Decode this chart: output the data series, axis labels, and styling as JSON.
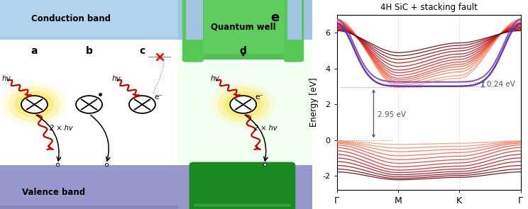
{
  "title_right": "4H SiC + stacking fault",
  "panel_e_label": "e",
  "ylabel": "Energy [eV]",
  "xtick_labels": [
    "Γ",
    "M",
    "K",
    "Γ"
  ],
  "ytick_vals": [
    -2,
    0,
    2,
    4,
    6
  ],
  "ylim": [
    -2.8,
    7.0
  ],
  "energy_gap_label": "2.95 eV",
  "split_label": "0.24 eV",
  "conduction_band_label": "Conduction band",
  "valence_band_label": "Valence band",
  "quantum_well_label": "Quantum well",
  "panel_labels": [
    "a",
    "b",
    "c",
    "d"
  ],
  "hv_label": "hv",
  "2hv_label": "2 × hv",
  "eminus_label": "e⁻",
  "cond_color_left": "#9ec8e8",
  "cond_color_right": "#8cbcd8",
  "val_color_left": "#9090c8",
  "val_color_right": "#8888be",
  "qw_color": "#55cc55",
  "qw_bottom_color": "#208820",
  "gap_right_color": "#f0fff0"
}
